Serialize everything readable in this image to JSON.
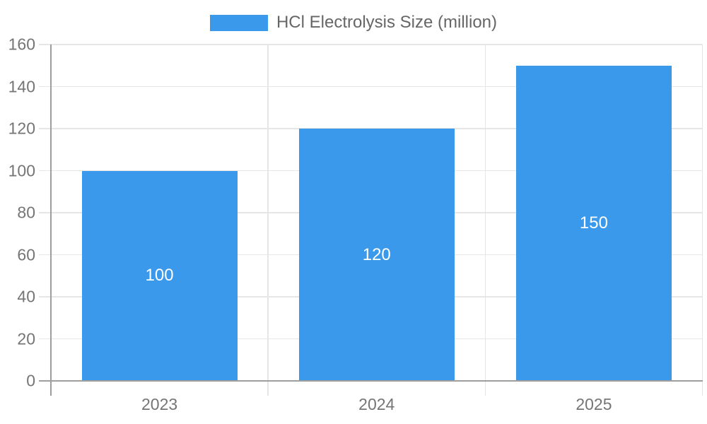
{
  "legend": {
    "label": "HCl Electrolysis Size (million)"
  },
  "colors": {
    "bar": "#3B99EB",
    "axis_line": "#9e9e9e",
    "grid_line": "#e6e6e6",
    "tick_label": "#757575",
    "legend_text": "#666666",
    "bar_label": "#ffffff",
    "background": "#ffffff"
  },
  "chart_data": {
    "type": "bar",
    "categories": [
      "2023",
      "2024",
      "2025"
    ],
    "series": [
      {
        "name": "HCl Electrolysis Size (million)",
        "values": [
          100,
          120,
          150
        ]
      }
    ],
    "data_labels": [
      "100",
      "120",
      "150"
    ],
    "title": "",
    "xlabel": "",
    "ylabel": "",
    "ylim": [
      0,
      160
    ],
    "yticks": [
      0,
      20,
      40,
      60,
      80,
      100,
      120,
      140,
      160
    ],
    "grid": true,
    "legend_position": "top"
  }
}
